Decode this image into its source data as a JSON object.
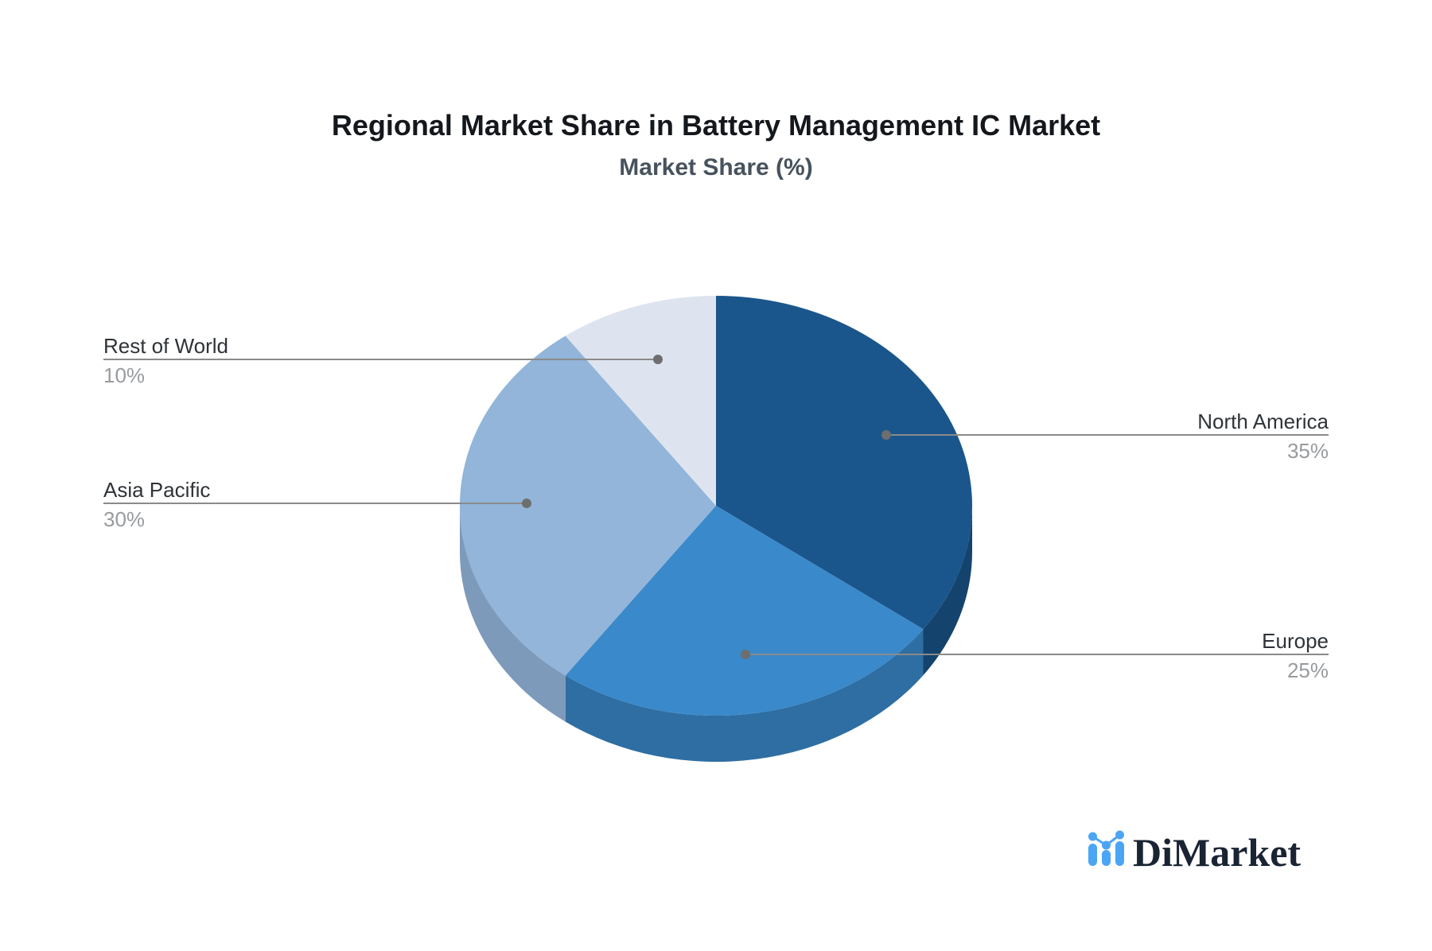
{
  "header": {
    "title": "Regional Market Share in Battery Management IC Market",
    "subtitle": "Market Share (%)"
  },
  "chart_data": {
    "type": "pie",
    "title": "Regional Market Share in Battery Management IC Market",
    "subtitle": "Market Share (%)",
    "unit": "%",
    "style": "3d-pie",
    "start_angle_deg": 0,
    "direction": "clockwise",
    "legend_position": "callout-labels",
    "slices": [
      {
        "label": "North America",
        "value": 35,
        "display": "35%",
        "color": "#1a568c",
        "depth_color": "#14436d",
        "side": "right"
      },
      {
        "label": "Europe",
        "value": 25,
        "display": "25%",
        "color": "#3a89cb",
        "depth_color": "#2e6ea2",
        "side": "right"
      },
      {
        "label": "Asia Pacific",
        "value": 30,
        "display": "30%",
        "color": "#92b5d9",
        "depth_color": "#7e9aba",
        "side": "left"
      },
      {
        "label": "Rest of World",
        "value": 10,
        "display": "10%",
        "color": "#dee4ef",
        "depth_color": "#c9d1dd",
        "side": "left"
      }
    ]
  },
  "branding": {
    "logo_text": "DiMarket",
    "logo_icon": "bar-line-chart-icon",
    "icon_color": "#4ba5f5",
    "text_color": "#1a2433"
  },
  "colors": {
    "background": "#ffffff",
    "title_text": "#14181d",
    "subtitle_text": "#47525c",
    "label_text": "#2e3338",
    "value_text": "#989b9e",
    "leader_line": "#8a8a8a"
  }
}
